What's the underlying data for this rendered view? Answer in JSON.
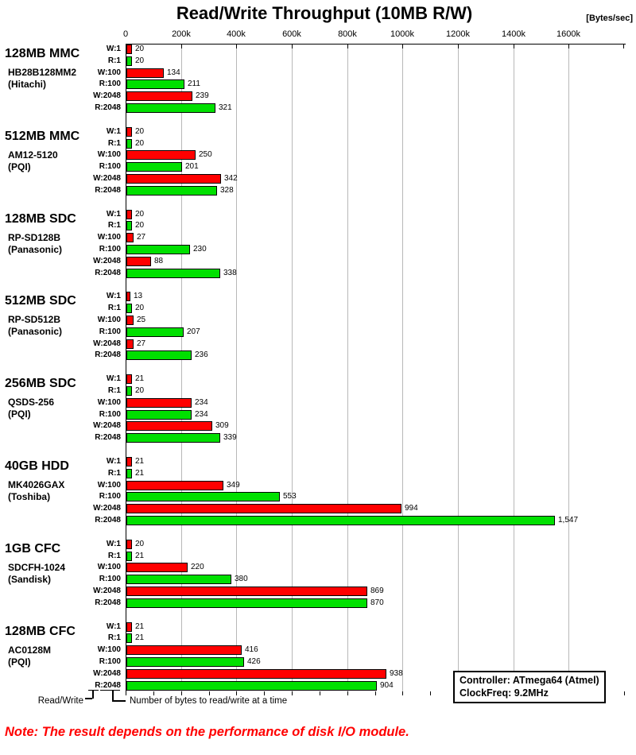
{
  "title": "Read/Write Throughput (10MB R/W)",
  "unit_label": "[Bytes/sec]",
  "note": "Note: The result depends on the performance of disk I/O module.",
  "info_box": {
    "controller": "Controller: ATmega64 (Atmel)",
    "clock": "ClockFreq: 9.2MHz"
  },
  "axis_legend": {
    "read_write": "Read/Write",
    "bytes_at_a_time": "Number of bytes to read/write at a time"
  },
  "colors": {
    "write_bar": "#ff0000",
    "read_bar": "#00e000",
    "grid": "#b8b8b8",
    "note_text": "#ff0000"
  },
  "chart_data": {
    "type": "bar",
    "orientation": "horizontal",
    "title": "Read/Write Throughput (10MB R/W)",
    "value_unit": "bar labels are in thousands of Bytes/sec (k)",
    "x_axis": {
      "tick_labels": [
        "0",
        "200k",
        "400k",
        "600k",
        "800k",
        "1000k",
        "1200k",
        "1400k",
        "1600k"
      ],
      "tick_values_k": [
        0,
        200,
        400,
        600,
        800,
        1000,
        1200,
        1400,
        1600
      ],
      "max_k": 1800,
      "grid": true
    },
    "row_labels": [
      "W:1",
      "R:1",
      "W:100",
      "R:100",
      "W:2048",
      "R:2048"
    ],
    "series": {
      "write_rows": [
        0,
        2,
        4
      ],
      "read_rows": [
        1,
        3,
        5
      ]
    },
    "groups": [
      {
        "name": "128MB MMC",
        "model": "HB28B128MM2",
        "maker": "(Hitachi)",
        "values": [
          20,
          20,
          134,
          211,
          239,
          321
        ]
      },
      {
        "name": "512MB MMC",
        "model": "AM12-5120",
        "maker": "(PQI)",
        "values": [
          20,
          20,
          250,
          201,
          342,
          328
        ]
      },
      {
        "name": "128MB SDC",
        "model": "RP-SD128B",
        "maker": "(Panasonic)",
        "values": [
          20,
          20,
          27,
          230,
          88,
          338
        ]
      },
      {
        "name": "512MB SDC",
        "model": "RP-SD512B",
        "maker": "(Panasonic)",
        "values": [
          13,
          20,
          25,
          207,
          27,
          236
        ]
      },
      {
        "name": "256MB SDC",
        "model": "QSDS-256",
        "maker": "(PQI)",
        "values": [
          21,
          20,
          234,
          234,
          309,
          339
        ]
      },
      {
        "name": "40GB HDD",
        "model": "MK4026GAX",
        "maker": "(Toshiba)",
        "values": [
          21,
          21,
          349,
          553,
          994,
          1547
        ]
      },
      {
        "name": "1GB CFC",
        "model": "SDCFH-1024",
        "maker": "(Sandisk)",
        "values": [
          20,
          21,
          220,
          380,
          869,
          870
        ]
      },
      {
        "name": "128MB CFC",
        "model": "AC0128M",
        "maker": "(PQI)",
        "values": [
          21,
          21,
          416,
          426,
          938,
          904
        ]
      }
    ]
  }
}
